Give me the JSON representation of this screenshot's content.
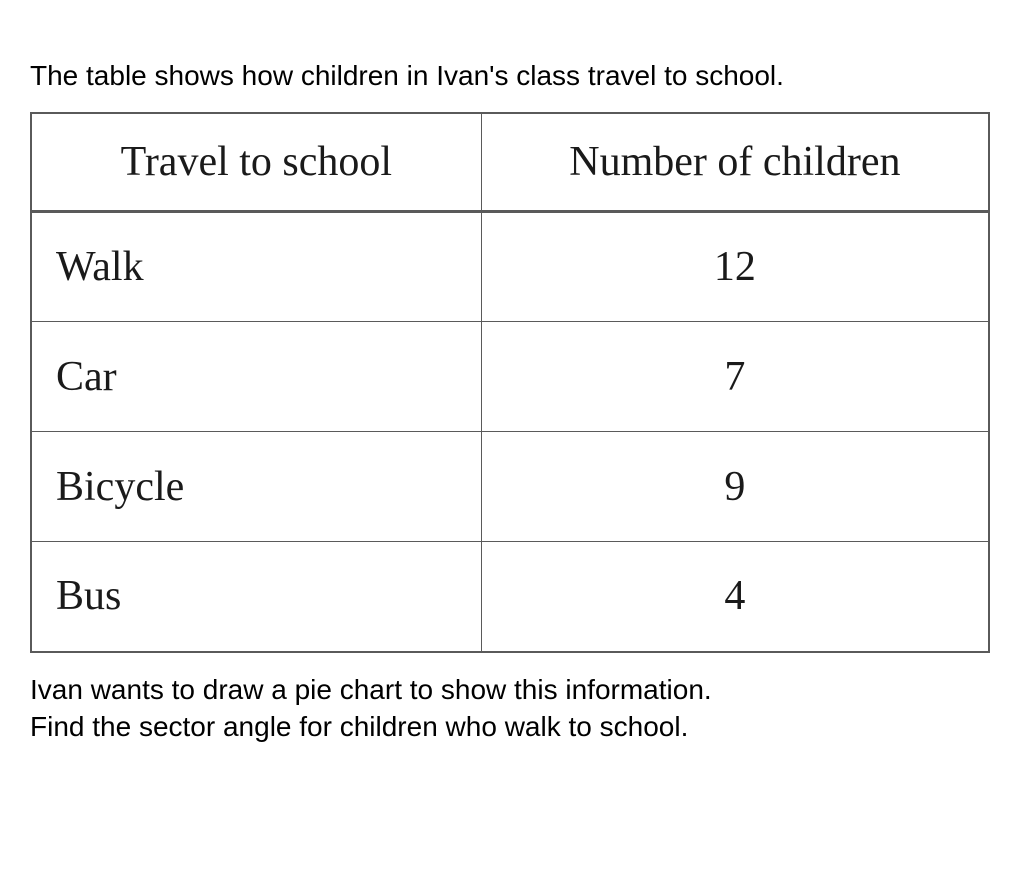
{
  "intro": "The table shows how children in Ivan's class travel to school.",
  "table": {
    "type": "table",
    "columns": [
      "Travel to school",
      "Number of children"
    ],
    "rows": [
      {
        "label": "Walk",
        "value": "12"
      },
      {
        "label": "Car",
        "value": "7"
      },
      {
        "label": "Bicycle",
        "value": "9"
      },
      {
        "label": "Bus",
        "value": "4"
      }
    ],
    "border_color": "#5a5a5a",
    "text_color": "#1a1a1a",
    "background_color": "#ffffff",
    "header_font_family": "Times New Roman",
    "cell_font_family": "Times New Roman",
    "header_fontsize": 42,
    "cell_fontsize": 42,
    "column_alignments": [
      "left",
      "center"
    ],
    "column_widths_pct": [
      47,
      53
    ]
  },
  "outro_line1": "Ivan wants to draw a pie chart to show this information.",
  "outro_line2": "Find the sector angle for children who walk to school.",
  "body_font_family": "Arial",
  "body_fontsize": 28,
  "body_text_color": "#000000"
}
